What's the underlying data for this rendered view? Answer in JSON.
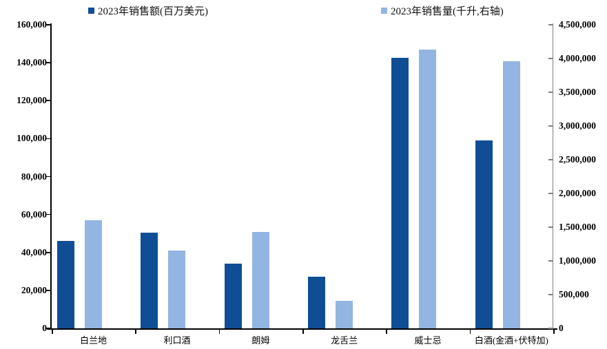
{
  "chart_data": {
    "type": "bar",
    "title": "",
    "categories": [
      "白兰地",
      "利口酒",
      "朗姆",
      "龙舌兰",
      "威士忌",
      "白酒(金酒+伏特加)"
    ],
    "series": [
      {
        "name": "2023年销售额(百万美元)",
        "axis": "left",
        "color": "#0F4E95",
        "values": [
          46000,
          50500,
          34000,
          27300,
          142500,
          99000
        ]
      },
      {
        "name": "2023年销售量(千升,右轴)",
        "axis": "right",
        "color": "#93B5E1",
        "values": [
          1600000,
          1150000,
          1430000,
          410000,
          4130000,
          3960000
        ]
      }
    ],
    "left_axis": {
      "min": 0,
      "max": 160000,
      "step": 20000
    },
    "right_axis": {
      "min": 0,
      "max": 4500000,
      "step": 500000
    },
    "legend_position": "top",
    "grid": false
  }
}
